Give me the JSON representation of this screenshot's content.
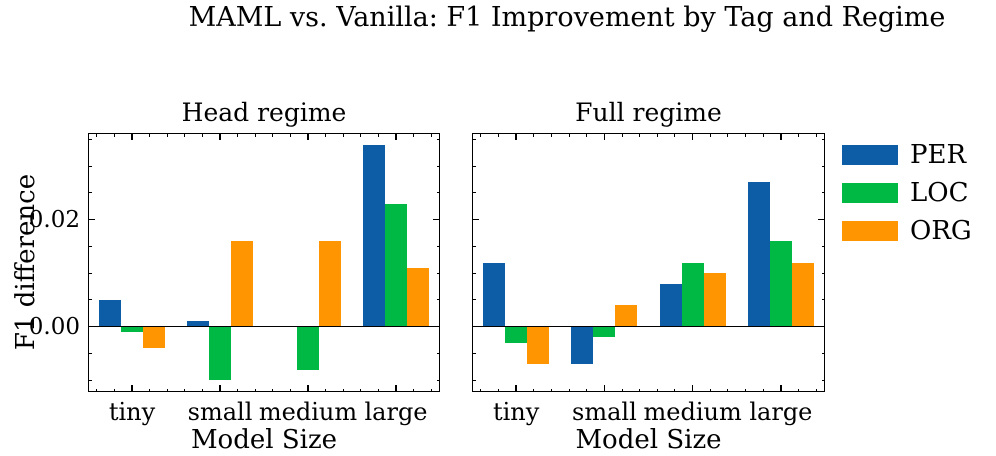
{
  "figure_title": "MAML vs. Vanilla: F1 Improvement by Tag and Regime",
  "colors": {
    "PER": "#0C5DA5",
    "LOC": "#00B945",
    "ORG": "#FF9500",
    "axis": "#000000",
    "background": "#FFFFFF"
  },
  "legend": {
    "position": "right-outside",
    "entries": [
      {
        "label": "PER",
        "color": "#0C5DA5"
      },
      {
        "label": "LOC",
        "color": "#00B945"
      },
      {
        "label": "ORG",
        "color": "#FF9500"
      }
    ]
  },
  "chart_data": [
    {
      "type": "bar",
      "title": "Head regime",
      "categories": [
        "tiny",
        "small",
        "medium",
        "large"
      ],
      "series": [
        {
          "name": "PER",
          "color": "#0C5DA5",
          "values": [
            0.005,
            0.001,
            0.0,
            0.034
          ]
        },
        {
          "name": "LOC",
          "color": "#00B945",
          "values": [
            -0.001,
            -0.01,
            -0.008,
            0.023
          ]
        },
        {
          "name": "ORG",
          "color": "#FF9500",
          "values": [
            -0.004,
            0.016,
            0.016,
            0.011
          ]
        }
      ],
      "xlabel": "Model Size",
      "ylabel": "F1 difference",
      "ylim": [
        -0.0122,
        0.0362
      ],
      "xlim": [
        -0.5,
        3.5
      ],
      "yticks": [
        0.0,
        0.02
      ],
      "ytick_labels": [
        "0.00",
        "0.02"
      ],
      "y_minor_step": 0.005,
      "x_minor_step": 0.2,
      "bar_width": 0.25,
      "grid": false,
      "zero_line": true,
      "ticks_direction": "in"
    },
    {
      "type": "bar",
      "title": "Full regime",
      "categories": [
        "tiny",
        "small",
        "medium",
        "large"
      ],
      "series": [
        {
          "name": "PER",
          "color": "#0C5DA5",
          "values": [
            0.012,
            -0.007,
            0.008,
            0.027
          ]
        },
        {
          "name": "LOC",
          "color": "#00B945",
          "values": [
            -0.003,
            -0.002,
            0.012,
            0.016
          ]
        },
        {
          "name": "ORG",
          "color": "#FF9500",
          "values": [
            -0.007,
            0.004,
            0.01,
            0.012
          ]
        }
      ],
      "xlabel": "Model Size",
      "ylabel": "",
      "ylim": [
        -0.0122,
        0.0362
      ],
      "xlim": [
        -0.5,
        3.5
      ],
      "yticks": [
        0.0,
        0.02
      ],
      "ytick_labels": [
        "0.00",
        "0.02"
      ],
      "y_minor_step": 0.005,
      "x_minor_step": 0.2,
      "bar_width": 0.25,
      "grid": false,
      "zero_line": true,
      "ticks_direction": "in"
    }
  ]
}
